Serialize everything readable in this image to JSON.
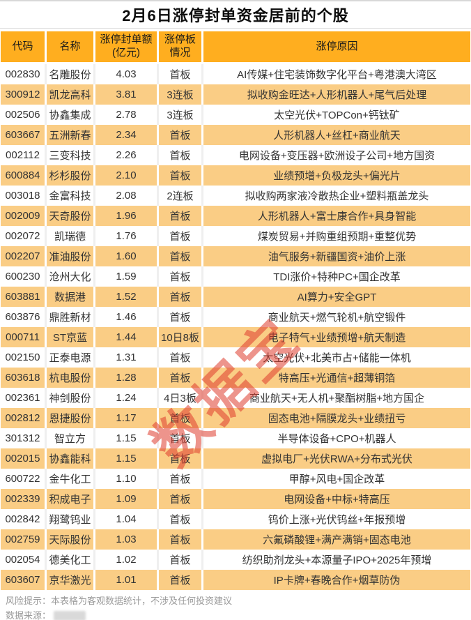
{
  "title": "2月6日涨停封单资金居前的个股",
  "colors": {
    "header_bg": "#FFAE1F",
    "stripe_bg": "#FACD85",
    "text": "#333333",
    "footer_gray": "#9B9B9B",
    "watermark_red": "#DE3C2D"
  },
  "headers": {
    "code": "代码",
    "name": "名称",
    "amount_line1": "涨停封单额",
    "amount_line2": "(亿元)",
    "board_line1": "涨停板",
    "board_line2": "情况",
    "reason": "涨停原因"
  },
  "watermark": "数据宝",
  "footer": {
    "risk": "风险提示：本表格为客观数据统计，不涉及任何投资建议",
    "source_label": "数据来源："
  },
  "chart_data": {
    "type": "table",
    "title": "2月6日涨停封单资金居前的个股",
    "columns": [
      "代码",
      "名称",
      "涨停封单额(亿元)",
      "涨停板情况",
      "涨停原因"
    ],
    "rows": [
      {
        "code": "002830",
        "name": "名雕股份",
        "amount": "4.03",
        "board": "首板",
        "reason": "AI传媒+住宅装饰数字化平台+粤港澳大湾区"
      },
      {
        "code": "300912",
        "name": "凯龙高科",
        "amount": "3.81",
        "board": "3连板",
        "reason": "拟收购金旺达+人形机器人+尾气后处理"
      },
      {
        "code": "002506",
        "name": "协鑫集成",
        "amount": "2.78",
        "board": "3连板",
        "reason": "太空光伏+TOPCon+钙钛矿"
      },
      {
        "code": "603667",
        "name": "五洲新春",
        "amount": "2.34",
        "board": "首板",
        "reason": "人形机器人+丝杠+商业航天"
      },
      {
        "code": "002112",
        "name": "三变科技",
        "amount": "2.26",
        "board": "首板",
        "reason": "电网设备+变压器+欧洲设子公司+地方国资"
      },
      {
        "code": "600884",
        "name": "杉杉股份",
        "amount": "2.10",
        "board": "首板",
        "reason": "业绩预增+负极龙头+偏光片"
      },
      {
        "code": "003018",
        "name": "金富科技",
        "amount": "2.08",
        "board": "2连板",
        "reason": "拟收购两家液冷散热企业+塑料瓶盖龙头"
      },
      {
        "code": "002009",
        "name": "天奇股份",
        "amount": "1.96",
        "board": "首板",
        "reason": "人形机器人+富士康合作+具身智能"
      },
      {
        "code": "002072",
        "name": "凯瑞德",
        "amount": "1.76",
        "board": "首板",
        "reason": "煤炭贸易+并购重组预期+重整优势"
      },
      {
        "code": "002207",
        "name": "准油股份",
        "amount": "1.60",
        "board": "首板",
        "reason": "油气服务+新疆国资+油价上涨"
      },
      {
        "code": "600230",
        "name": "沧州大化",
        "amount": "1.59",
        "board": "首板",
        "reason": "TDI涨价+特种PC+国企改革"
      },
      {
        "code": "603881",
        "name": "数据港",
        "amount": "1.52",
        "board": "首板",
        "reason": "AI算力+安全GPT"
      },
      {
        "code": "603876",
        "name": "鼎胜新材",
        "amount": "1.46",
        "board": "首板",
        "reason": "商业航天+燃气轮机+航空锻件"
      },
      {
        "code": "000711",
        "name": "ST京蓝",
        "amount": "1.44",
        "board": "10日8板",
        "reason": "电子特气+业绩预增+航天制造"
      },
      {
        "code": "002150",
        "name": "正泰电源",
        "amount": "1.31",
        "board": "首板",
        "reason": "太空光伏+北美市占+储能一体机"
      },
      {
        "code": "603618",
        "name": "杭电股份",
        "amount": "1.28",
        "board": "首板",
        "reason": "特高压+光通信+超薄铜箔"
      },
      {
        "code": "002361",
        "name": "神剑股份",
        "amount": "1.24",
        "board": "4日3板",
        "reason": "商业航天+无人机+聚酯树脂+地方国企"
      },
      {
        "code": "002812",
        "name": "恩捷股份",
        "amount": "1.17",
        "board": "首板",
        "reason": "固态电池+隔膜龙头+业绩扭亏"
      },
      {
        "code": "301312",
        "name": "智立方",
        "amount": "1.15",
        "board": "首板",
        "reason": "半导体设备+CPO+机器人"
      },
      {
        "code": "002015",
        "name": "协鑫能科",
        "amount": "1.15",
        "board": "首板",
        "reason": "虚拟电厂+光伏RWA+分布式光伏"
      },
      {
        "code": "600722",
        "name": "金牛化工",
        "amount": "1.10",
        "board": "首板",
        "reason": "甲醇+风电+国企改革"
      },
      {
        "code": "002339",
        "name": "积成电子",
        "amount": "1.09",
        "board": "首板",
        "reason": "电网设备+中标+特高压"
      },
      {
        "code": "002842",
        "name": "翔鹭钨业",
        "amount": "1.04",
        "board": "首板",
        "reason": "钨价上涨+光伏钨丝+年报预增"
      },
      {
        "code": "002759",
        "name": "天际股份",
        "amount": "1.03",
        "board": "首板",
        "reason": "六氟磷酸锂+满产满销+固态电池"
      },
      {
        "code": "002054",
        "name": "德美化工",
        "amount": "1.02",
        "board": "首板",
        "reason": "纺织助剂龙头+本源量子IPO+2025年预增"
      },
      {
        "code": "603607",
        "name": "京华激光",
        "amount": "1.01",
        "board": "首板",
        "reason": "IP卡牌+春晚合作+烟草防伪"
      }
    ]
  }
}
